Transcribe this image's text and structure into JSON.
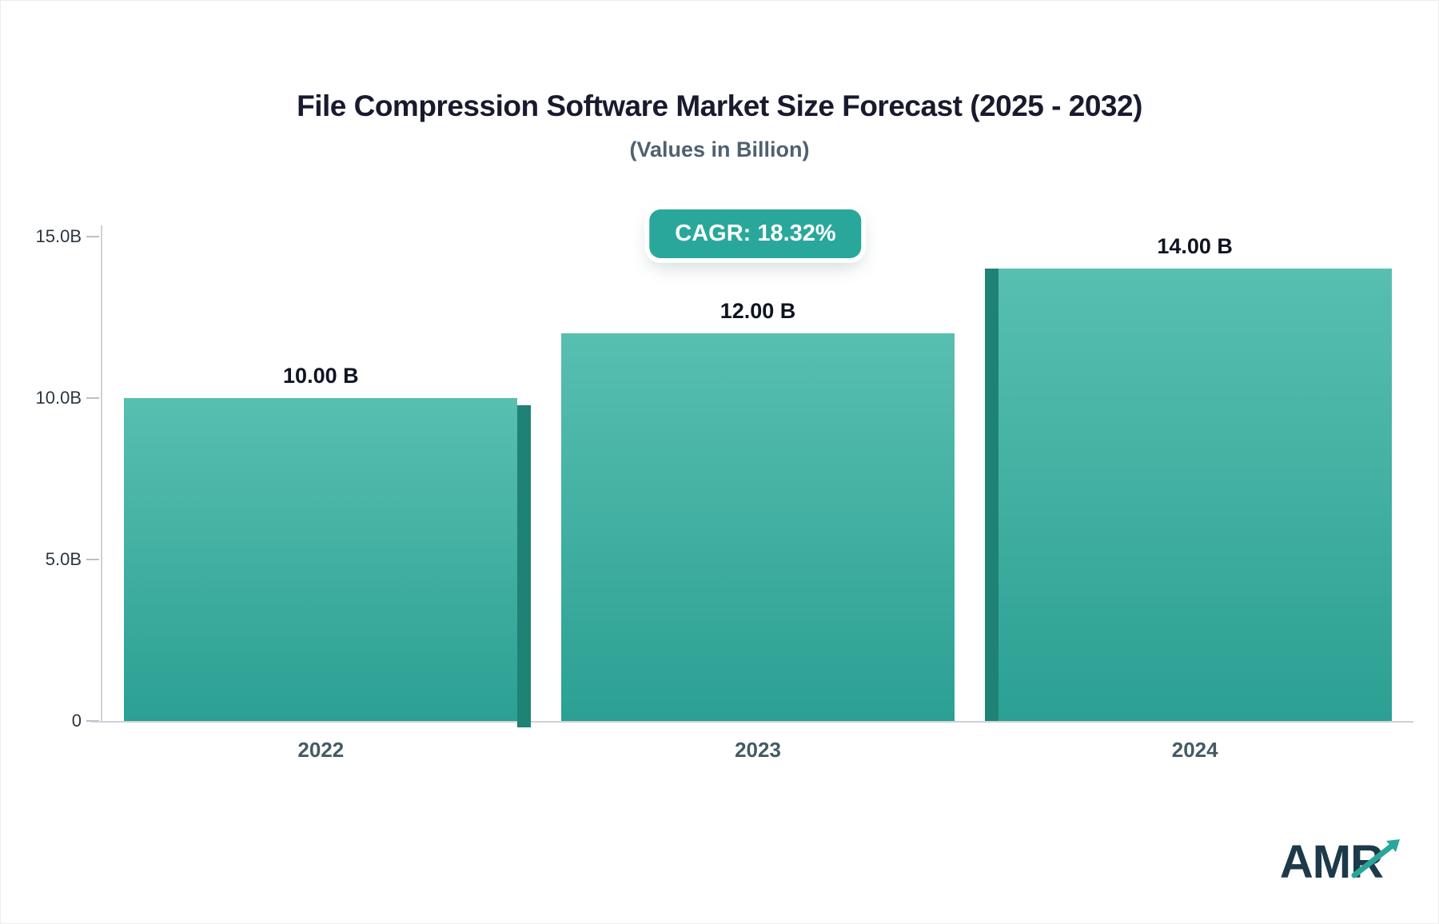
{
  "title": "File Compression Software Market Size Forecast (2025 - 2032)",
  "subtitle": "(Values in Billion)",
  "badge": {
    "label": "CAGR: 18.32%"
  },
  "logo": {
    "text": "AMR"
  },
  "chart_data": {
    "type": "bar",
    "title": "File Compression Software Market Size Forecast (2025 - 2032)",
    "subtitle": "(Values in Billion)",
    "categories": [
      "2022",
      "2023",
      "2024"
    ],
    "values": [
      10,
      12,
      14
    ],
    "value_labels": [
      "10.00 B",
      "12.00 B",
      "14.00 B"
    ],
    "xlabel": "",
    "ylabel": "",
    "ylim": [
      0,
      15
    ],
    "yticks": [
      0,
      5,
      10,
      15
    ],
    "ytick_labels": [
      "0",
      "5.0B",
      "10.0B",
      "15.0B"
    ],
    "grid": false,
    "legend": "none",
    "annotation": "CAGR: 18.32%",
    "bar_color_top": "#58bfb1",
    "bar_color_bottom": "#2ba093",
    "edge_color": "#1f8276",
    "edges": [
      "right",
      "none",
      "left"
    ]
  }
}
